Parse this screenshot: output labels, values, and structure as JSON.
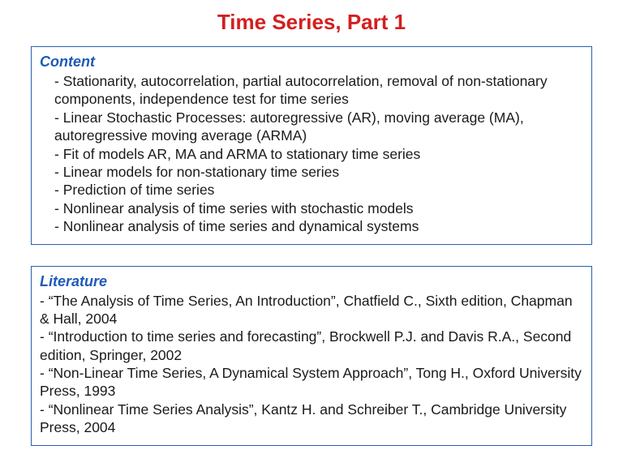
{
  "title": "Time Series, Part 1",
  "content": {
    "heading": "Content",
    "items": [
      "- Stationarity, autocorrelation, partial autocorrelation, removal of non-stationary components, independence test for time series",
      "- Linear Stochastic Processes: autoregressive (AR),  moving average (MA), autoregressive moving average (ARMA)",
      "- Fit of models AR, MA and ARMA to stationary time series",
      "- Linear models for non-stationary time series",
      "- Prediction of time series",
      "- Nonlinear analysis of time series with stochastic models",
      "- Nonlinear analysis of time series and dynamical systems"
    ]
  },
  "literature": {
    "heading": "Literature",
    "items": [
      "- “The Analysis of Time Series, An Introduction”, Chatfield C., Sixth edition, Chapman & Hall, 2004",
      "- “Introduction to time series and forecasting”, Brockwell P.J. and Davis R.A., Second  edition, Springer, 2002",
      "- “Non-Linear Time Series, A Dynamical System Approach”, Tong H., Oxford University Press, 1993",
      "- “Nonlinear Time Series Analysis”, Kantz H. and Schreiber T., Cambridge University Press, 2004"
    ]
  },
  "colors": {
    "title_color": "#d41f1f",
    "heading_color": "#1f5ab8",
    "border_color": "#2a5fb0",
    "text_color": "#1a1a1a",
    "background": "#ffffff"
  },
  "fonts": {
    "title_size_pt": 20,
    "heading_size_pt": 14,
    "body_size_pt": 13
  }
}
